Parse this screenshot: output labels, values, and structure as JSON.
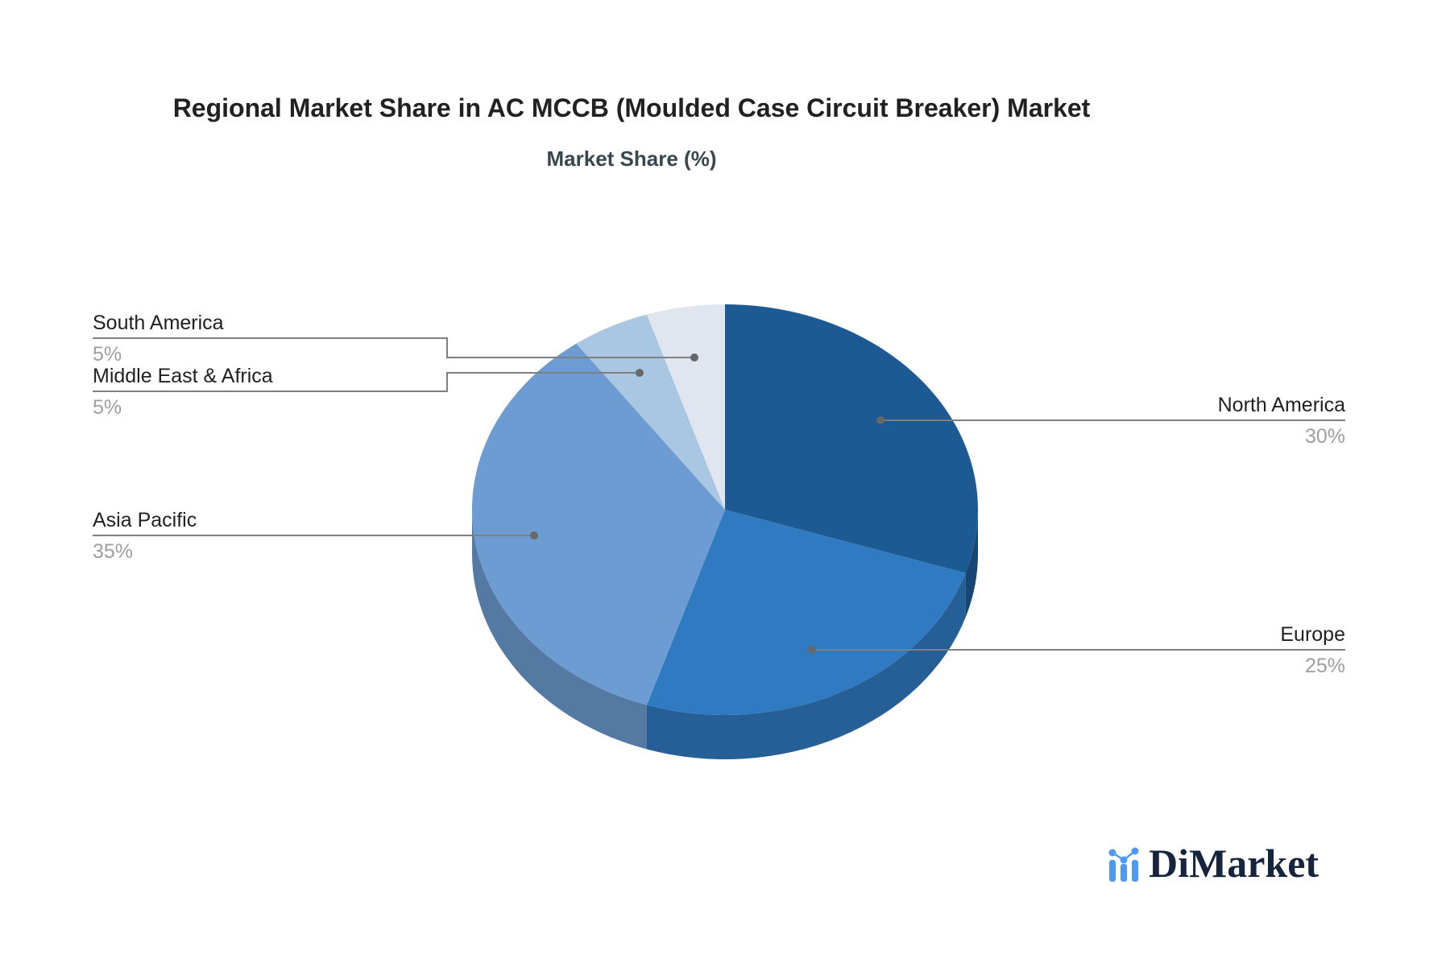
{
  "header": {
    "title": "Regional Market Share in AC MCCB (Moulded Case Circuit Breaker) Market",
    "subtitle": "Market Share (%)"
  },
  "chart_data": {
    "type": "pie",
    "title": "Regional Market Share in AC MCCB (Moulded Case Circuit Breaker) Market",
    "subtitle": "Market Share (%)",
    "unit": "%",
    "style": "3d-pie",
    "start_angle_deg": 0,
    "direction": "clockwise",
    "legend_position": "none",
    "slices": [
      {
        "label": "North America",
        "value": 30,
        "display": "30%",
        "color": "#1D5A94",
        "label_side": "right"
      },
      {
        "label": "Europe",
        "value": 25,
        "display": "25%",
        "color": "#2F7AC0",
        "label_side": "right"
      },
      {
        "label": "Asia Pacific",
        "value": 35,
        "display": "35%",
        "color": "#6C9CD2",
        "label_side": "left"
      },
      {
        "label": "Middle East & Africa",
        "value": 5,
        "display": "5%",
        "color": "#A9C7E3",
        "label_side": "left"
      },
      {
        "label": "South America",
        "value": 5,
        "display": "5%",
        "color": "#DFE6EF",
        "label_side": "left"
      }
    ],
    "leader_line_color": "#7F7F7F",
    "leader_dot_color": "#686868",
    "label_color": "#212121",
    "value_color": "#9E9E9E"
  },
  "logo": {
    "text": "DiMarket",
    "icon": "bar-chart-trend-icon",
    "icon_color": "#4D9AF5",
    "text_color": "#16243D"
  }
}
